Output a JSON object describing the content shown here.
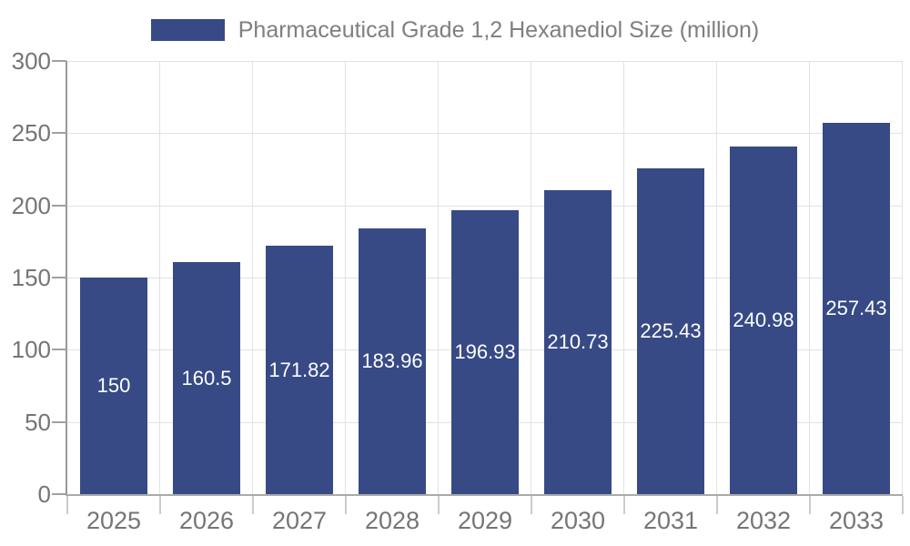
{
  "chart_data": {
    "type": "bar",
    "title": "Pharmaceutical Grade 1,2 Hexanediol Size (million)",
    "legend": {
      "position": "top-center",
      "entries": [
        "Pharmaceutical Grade 1,2 Hexanediol Size (million)"
      ]
    },
    "categories": [
      "2025",
      "2026",
      "2027",
      "2028",
      "2029",
      "2030",
      "2031",
      "2032",
      "2033"
    ],
    "series": [
      {
        "name": "Pharmaceutical Grade 1,2 Hexanediol Size (million)",
        "values": [
          150,
          160.5,
          171.82,
          183.96,
          196.93,
          210.73,
          225.43,
          240.98,
          257.43
        ],
        "data_labels": [
          "150",
          "160.5",
          "171.82",
          "183.96",
          "196.93",
          "210.73",
          "225.43",
          "240.98",
          "257.43"
        ]
      }
    ],
    "xlabel": "",
    "ylabel": "",
    "ylim": [
      0,
      300
    ],
    "yticks": [
      0,
      50,
      100,
      150,
      200,
      250,
      300
    ],
    "grid": true,
    "data_label_position": "inside-center"
  },
  "colors": {
    "bar": "#374a85",
    "grid": "#e2e2e2",
    "y_axis_line": "#999999",
    "x_axis_line": "#aaaaaa",
    "y_tick": "#a0a0a0",
    "x_tick": "#cccccc",
    "axis_text": "#757575",
    "legend_text": "#7f7f7f",
    "bar_label_text": "#ffffff"
  }
}
